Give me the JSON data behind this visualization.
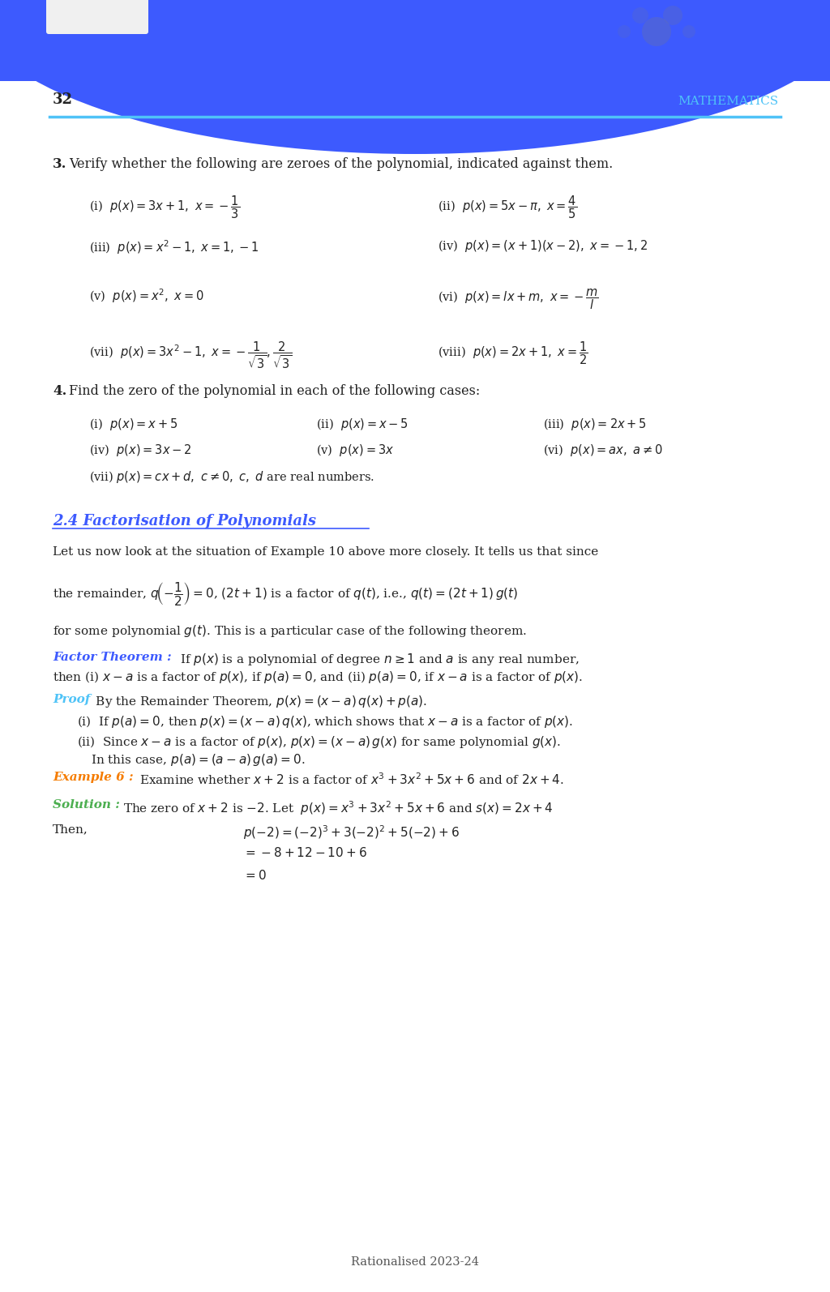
{
  "page_number": "32",
  "header_right": "MATHEMATICS",
  "bg_color": "#ffffff",
  "header_line_color": "#4FC3F7",
  "section_color": "#3D5AFE",
  "proof_color": "#4FC3F7",
  "example_color": "#F57C00",
  "solution_color": "#4CAF50",
  "text_color": "#222222",
  "footer_text": "Rationalised 2023-24",
  "top_bg_color": "#3D5AFE",
  "math_color": "#4FC3F7"
}
